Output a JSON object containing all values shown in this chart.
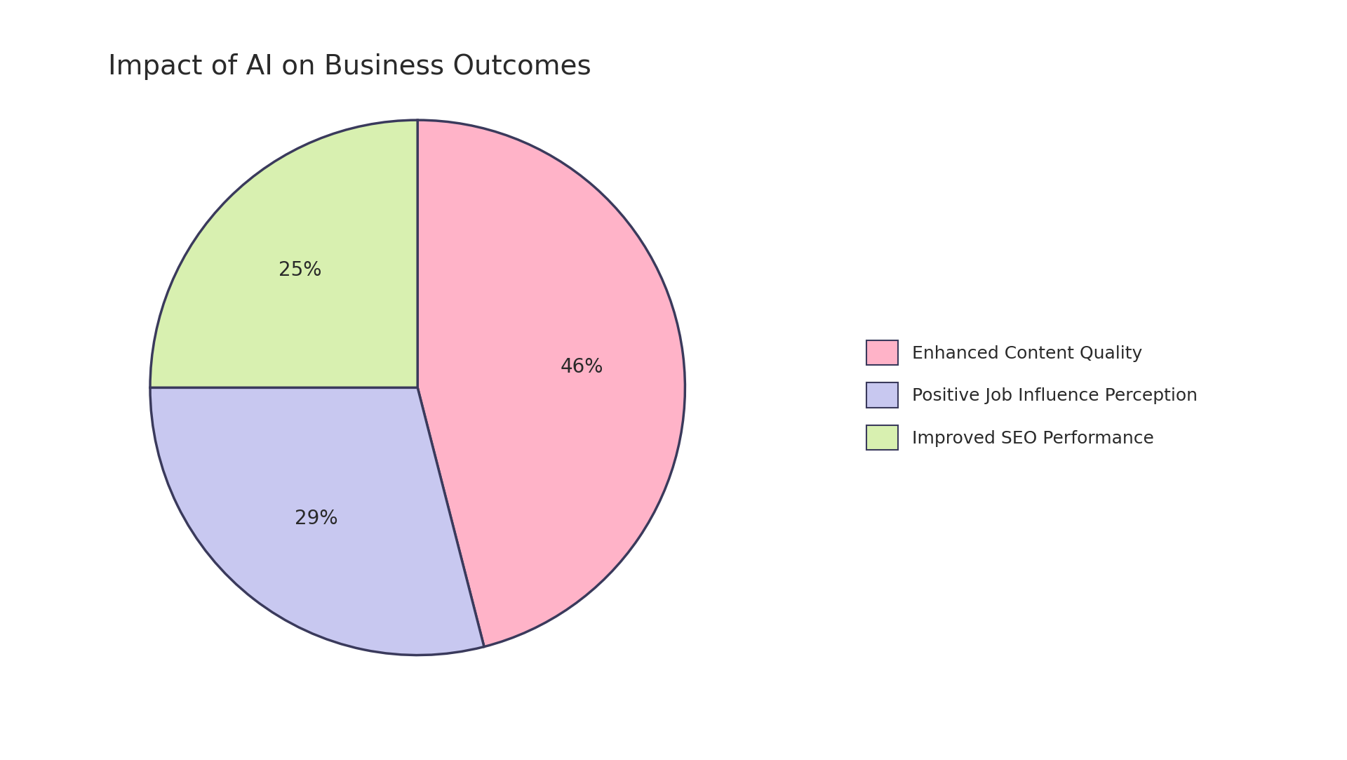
{
  "title": "Impact of AI on Business Outcomes",
  "slices": [
    46,
    29,
    25
  ],
  "labels": [
    "Enhanced Content Quality",
    "Positive Job Influence Perception",
    "Improved SEO Performance"
  ],
  "colors": [
    "#FFB3C8",
    "#C8C8F0",
    "#D8F0B0"
  ],
  "edge_color": "#3a3a5c",
  "edge_width": 2.5,
  "autopct_labels": [
    "46%",
    "29%",
    "25%"
  ],
  "startangle": 90,
  "background_color": "#ffffff",
  "title_fontsize": 28,
  "title_color": "#2a2a2a",
  "legend_fontsize": 18,
  "autopct_fontsize": 20,
  "autopct_color": "#2a2a2a"
}
